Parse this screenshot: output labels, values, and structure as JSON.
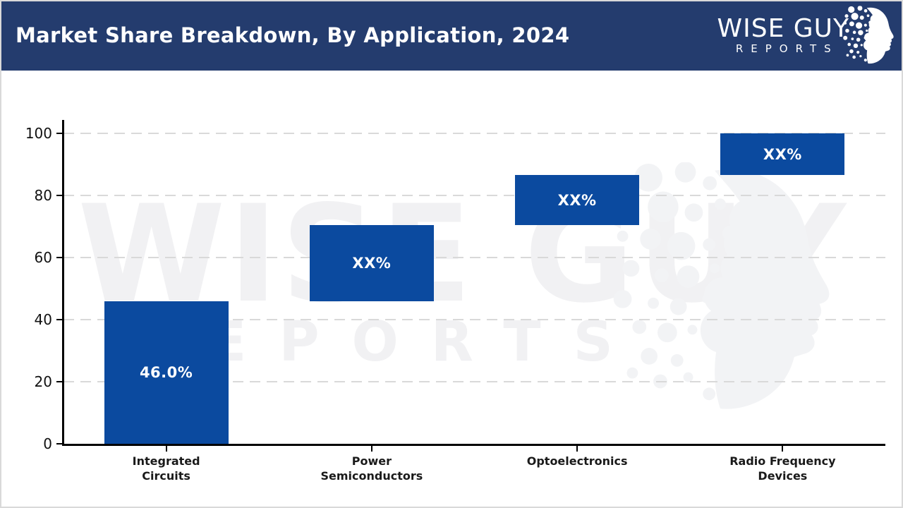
{
  "header": {
    "title": "Market Share Breakdown, By Application, 2024",
    "logo_line1": "WISE GUY",
    "logo_line2": "REPORTS"
  },
  "watermark": {
    "line1": "WISE GUY",
    "line2": "REPORTS"
  },
  "chart_data": {
    "type": "bar",
    "subtype": "waterfall",
    "title": "Market Share Breakdown, By Application, 2024",
    "categories": [
      "Integrated Circuits",
      "Power Semiconductors",
      "Optoelectronics",
      "Radio Frequency Devices"
    ],
    "category_lines": [
      [
        "Integrated",
        "Circuits"
      ],
      [
        "Power",
        "Semiconductors"
      ],
      [
        "Optoelectronics"
      ],
      [
        "Radio Frequency",
        "Devices"
      ]
    ],
    "segments": [
      {
        "category": "Integrated Circuits",
        "start": 0,
        "end": 46,
        "value": 46,
        "label": "46.0%"
      },
      {
        "category": "Power Semiconductors",
        "start": 46,
        "end": 70.5,
        "value": 24.5,
        "label": "XX%"
      },
      {
        "category": "Optoelectronics",
        "start": 70.5,
        "end": 86.5,
        "value": 16,
        "label": "XX%"
      },
      {
        "category": "Radio Frequency Devices",
        "start": 86.5,
        "end": 100,
        "value": 13.5,
        "label": "XX%"
      }
    ],
    "y_ticks": [
      0,
      20,
      40,
      60,
      80,
      100
    ],
    "ylim": [
      0,
      104
    ],
    "xlabel": "",
    "ylabel": "",
    "grid": "horizontal-dashed",
    "legend": "none"
  },
  "colors": {
    "header_bg": "#243c6e",
    "bar": "#0b4a9f",
    "bar_label": "#ffffff",
    "grid": "#d9d9d9",
    "axis": "#000000",
    "watermark": "#f1f1f3",
    "page_border": "#d9d9d9"
  }
}
